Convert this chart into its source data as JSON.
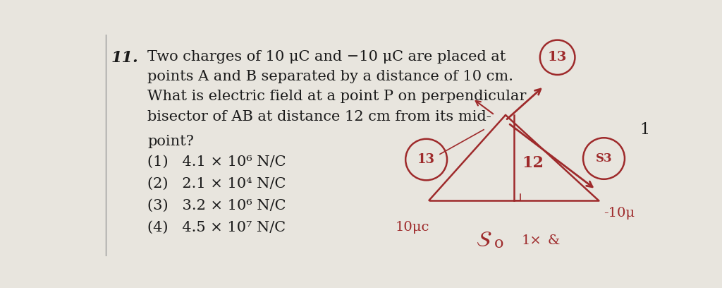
{
  "background_color": "#e8e5de",
  "text_color": "#1a1a1a",
  "red_color": "#9e2a2b",
  "q_num": "11.",
  "line1": "Two charges of 10 μC and −10 μC are placed at",
  "line2": "points A and B separated by a distance of 10 cm.",
  "line3": "What is electric field at a point P on perpendicular",
  "line4": "bisector of AB at distance 12 cm from its mid-",
  "line5": "point?",
  "opt1": "(1)   4.1 × 10⁶ N/C",
  "opt2": "(2)   2.1 × 10⁴ N/C",
  "opt3": "(3)   3.2 × 10⁶ N/C",
  "opt4": "(4)   4.5 × 10⁷ N/C",
  "circ_top_label": "13",
  "circ_left_label": "13",
  "circ_right_label": "S3",
  "label_12": "12",
  "label_10mu_left": "10μc",
  "label_minus10": "-10μ",
  "label_one": "1"
}
